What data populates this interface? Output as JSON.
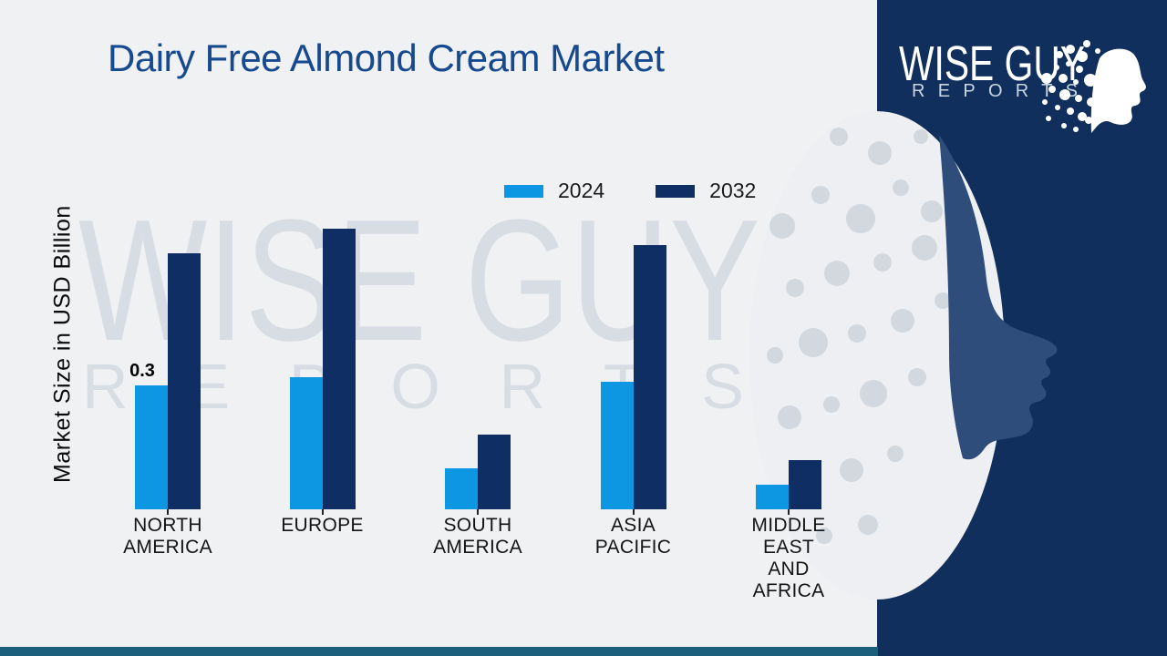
{
  "title": "Dairy Free Almond Cream Market",
  "y_axis_label": "Market Size in USD Billion",
  "legend": {
    "items": [
      {
        "label": "2024"
      },
      {
        "label": "2032"
      }
    ],
    "position": "top-center"
  },
  "chart_data": {
    "type": "bar",
    "categories": [
      "NORTH AMERICA",
      "EUROPE",
      "SOUTH AMERICA",
      "ASIA PACIFIC",
      "MIDDLE EAST AND AFRICA"
    ],
    "series": [
      {
        "name": "2024",
        "color": "#0d97e2",
        "values": [
          0.3,
          0.32,
          0.1,
          0.31,
          0.06
        ]
      },
      {
        "name": "2032",
        "color": "#0f2e63",
        "values": [
          0.62,
          0.68,
          0.18,
          0.64,
          0.12
        ]
      }
    ],
    "title": "Dairy Free Almond Cream Market",
    "xlabel": "",
    "ylabel": "Market Size in USD Billion",
    "ylim": [
      0,
      0.75
    ],
    "grid": false,
    "legend_position": "top-center",
    "bar_label": {
      "text": "0.3",
      "category_index": 0,
      "series_index": 0
    }
  },
  "logo": {
    "line1": "WISE GUY",
    "line2": "REPORTS"
  },
  "watermark": {
    "line1": "WISE GUY",
    "line2": "REPORTS"
  },
  "colors": {
    "title_blue": "#17498f",
    "series_2024": "#0d97e2",
    "series_2032": "#0f2e63",
    "panel_navy": "#112f5d",
    "panel_face_navy": "#2e4d7a",
    "bottom_strip_teal": "#1c5f7d",
    "background": "#f0f1f3",
    "watermark_gray": "#d8dce3"
  }
}
